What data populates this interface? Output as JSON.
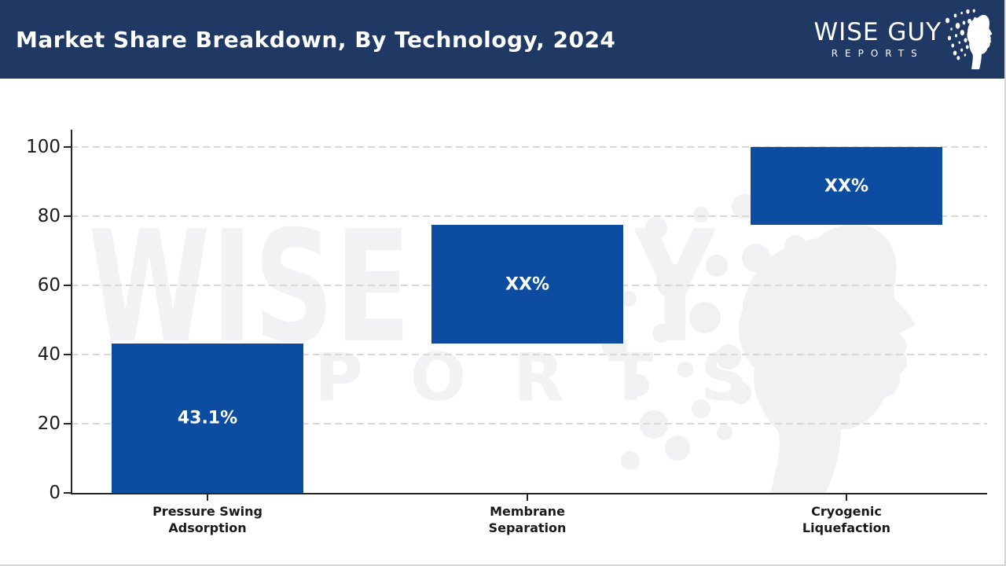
{
  "header": {
    "title": "Market Share Breakdown, By Technology, 2024",
    "bg_color": "#1f3864",
    "logo": {
      "name": "WISE GUY",
      "sub": "REPORTS"
    }
  },
  "watermark": {
    "line1": "WISE GUY",
    "line2": "REPORTS"
  },
  "chart_data": {
    "type": "bar",
    "subtype": "waterfall",
    "title": "Market Share Breakdown, By Technology, 2024",
    "categories": [
      "Pressure Swing\nAdsorption",
      "Membrane\nSeparation",
      "Cryogenic\nLiquefaction"
    ],
    "bars": [
      {
        "category": "Pressure Swing Adsorption",
        "label": "43.1%",
        "start": 0,
        "end": 43.1
      },
      {
        "category": "Membrane Separation",
        "label": "XX%",
        "start": 43.1,
        "end": 77.5
      },
      {
        "category": "Cryogenic Liquefaction",
        "label": "XX%",
        "start": 77.5,
        "end": 100
      }
    ],
    "xlabel": "",
    "ylabel": "",
    "ylim": [
      0,
      100
    ],
    "yticks": [
      0,
      20,
      40,
      60,
      80,
      100
    ],
    "grid": "dashed horizontal gridlines at each ytick above 0",
    "bar_color": "#0c4da2",
    "bar_label_color": "#ffffff",
    "axis_color": "#262626",
    "grid_color": "#d9d9d9"
  }
}
